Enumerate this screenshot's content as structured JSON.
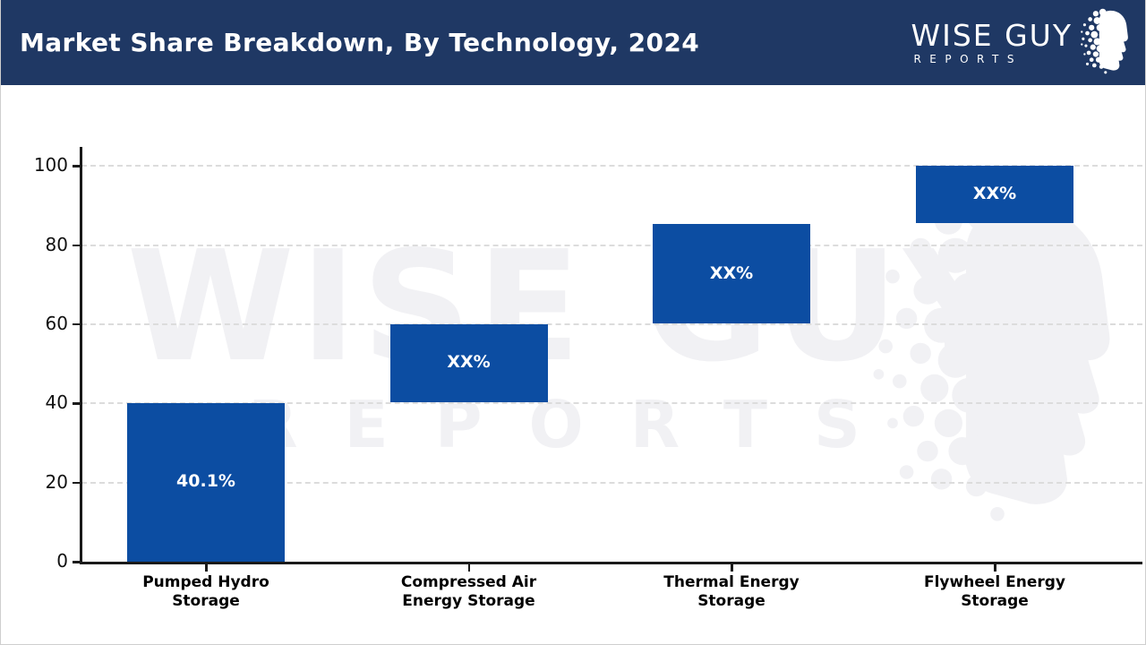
{
  "header": {
    "title": "Market Share Breakdown, By Technology, 2024",
    "background_color": "#1f3864",
    "logo": {
      "name": "WISE GUY",
      "tagline": "REPORTS"
    }
  },
  "watermark": {
    "name": "WISE GUY",
    "tagline": "REPORTS"
  },
  "chart_data": {
    "type": "bar",
    "subtype": "waterfall",
    "title": "Market Share Breakdown, By Technology, 2024",
    "categories": [
      "Pumped Hydro Storage",
      "Compressed Air Energy Storage",
      "Thermal Energy Storage",
      "Flywheel Energy Storage"
    ],
    "category_label_lines": [
      [
        "Pumped Hydro",
        "Storage"
      ],
      [
        "Compressed Air",
        "Energy Storage"
      ],
      [
        "Thermal Energy",
        "Storage"
      ],
      [
        "Flywheel Energy",
        "Storage"
      ]
    ],
    "segments": [
      {
        "category": "Pumped Hydro Storage",
        "start": 0,
        "end": 40.1,
        "label": "40.1%"
      },
      {
        "category": "Compressed Air Energy Storage",
        "start": 40.3,
        "end": 60.0,
        "label": "XX%"
      },
      {
        "category": "Thermal Energy Storage",
        "start": 60.2,
        "end": 85.3,
        "label": "XX%"
      },
      {
        "category": "Flywheel Energy Storage",
        "start": 85.5,
        "end": 100,
        "label": "XX%"
      }
    ],
    "ylim": [
      0,
      100
    ],
    "y_ticks": [
      0,
      20,
      40,
      60,
      80,
      100
    ],
    "bar_color": "#0c4da2",
    "bar_label_color": "#ffffff",
    "xlabel": "",
    "ylabel": "",
    "grid": true,
    "gridline_style": "dashed",
    "legend_position": "none"
  }
}
